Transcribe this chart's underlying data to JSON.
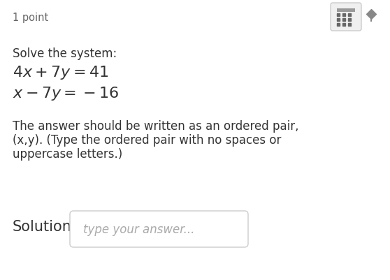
{
  "background_color": "#ffffff",
  "point_label": "1 point",
  "point_label_color": "#666666",
  "point_fontsize": 10.5,
  "solve_text": "Solve the system:",
  "eq1": "$4x + 7y = 41$",
  "eq2": "$x - 7y = -16$",
  "eq_fontsize": 16,
  "body_text_line1": "The answer should be written as an ordered pair,",
  "body_text_line2": "(x,y). (Type the ordered pair with no spaces or",
  "body_text_line3": "uppercase letters.)",
  "body_fontsize": 12,
  "solve_fontsize": 12,
  "solution_label": "Solution:",
  "solution_label_fontsize": 15,
  "placeholder_text": "type your answer...",
  "placeholder_color": "#aaaaaa",
  "placeholder_fontsize": 12,
  "box_facecolor": "#ffffff",
  "box_edgecolor": "#cccccc",
  "icon_box_color": "#f0f0f0",
  "icon_box_edge": "#cccccc",
  "text_color": "#333333"
}
